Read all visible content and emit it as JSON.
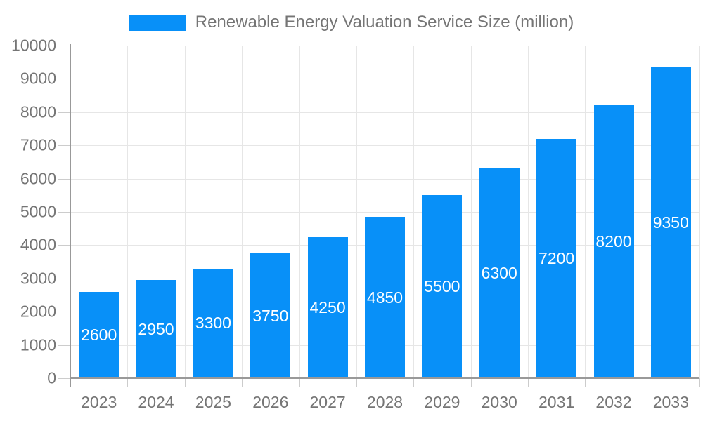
{
  "legend": {
    "label": "Renewable Energy Valuation Service Size (million)"
  },
  "chart_data": {
    "type": "bar",
    "title": "Renewable Energy Valuation Service Size (million)",
    "categories": [
      "2023",
      "2024",
      "2025",
      "2026",
      "2027",
      "2028",
      "2029",
      "2030",
      "2031",
      "2032",
      "2033"
    ],
    "values": [
      2600,
      2950,
      3300,
      3750,
      4250,
      4850,
      5500,
      6300,
      7200,
      8200,
      9350
    ],
    "xlabel": "",
    "ylabel": "",
    "ylim": [
      0,
      10000
    ],
    "ytick_step": 1000,
    "ytick_labels": [
      "0",
      "1000",
      "2000",
      "3000",
      "4000",
      "5000",
      "6000",
      "7000",
      "8000",
      "9000",
      "10000"
    ],
    "grid": true,
    "legend_position": "top",
    "bar_labels_inside": true,
    "colors": {
      "bar": "#0890f8",
      "text": "#757575",
      "axis": "#999999",
      "grid": "#e6e6e6",
      "tick": "#cccccc",
      "bar_label": "#ffffff"
    }
  }
}
